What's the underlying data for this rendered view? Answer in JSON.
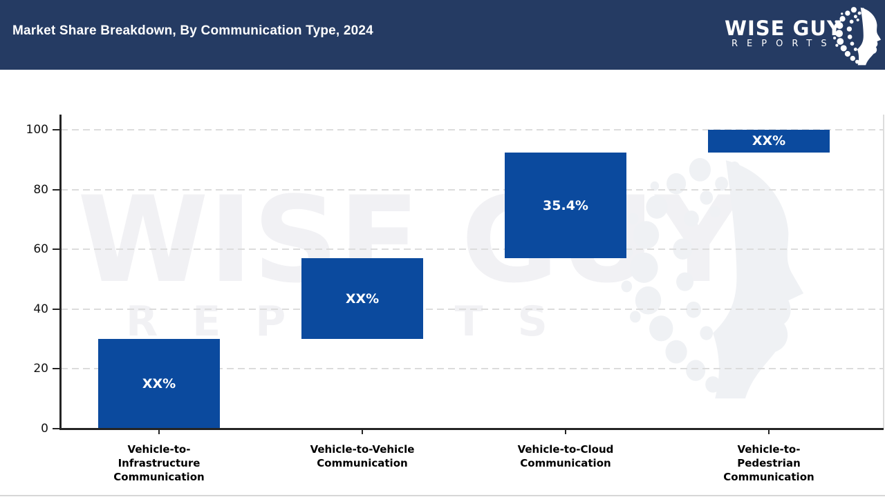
{
  "header": {
    "title": "Market Share Breakdown, By Communication Type, 2024",
    "background_color": "#253b63",
    "logo": {
      "line1": "WISE GUY",
      "line2": "REPORTS",
      "head_icon": "dotted-head-profile-icon",
      "color": "#ffffff"
    }
  },
  "watermark": {
    "line1": "WISE GUY",
    "line2": "REPORTS",
    "head_icon": "dotted-head-profile-icon",
    "color": "#f1f1f4"
  },
  "colors": {
    "bar": "#0b4a9e",
    "bar_label": "#ffffff",
    "axis": "#242424",
    "gridline": "#dcdcdc",
    "tick_text": "#111111",
    "category_text": "#000000"
  },
  "chart_data": {
    "type": "bar",
    "subtype": "waterfall",
    "title": "Market Share Breakdown, By Communication Type, 2024",
    "xlabel": "",
    "ylabel": "",
    "ylim": [
      0,
      100
    ],
    "yticks": [
      0,
      20,
      40,
      60,
      80,
      100
    ],
    "grid": "horizontal-dashed",
    "legend": "none",
    "categories": [
      "Vehicle-to-Infrastructure Communication",
      "Vehicle-to-Vehicle Communication",
      "Vehicle-to-Cloud Communication",
      "Vehicle-to-Pedestrian Communication"
    ],
    "segments": [
      {
        "category": "Vehicle-to-Infrastructure Communication",
        "lines": [
          "Vehicle-to-",
          "Infrastructure",
          "Communication"
        ],
        "start": 0,
        "end": 30,
        "value_label": "XX%",
        "value_estimate": 30
      },
      {
        "category": "Vehicle-to-Vehicle Communication",
        "lines": [
          "Vehicle-to-Vehicle",
          "Communication"
        ],
        "start": 30,
        "end": 57,
        "value_label": "XX%",
        "value_estimate": 27
      },
      {
        "category": "Vehicle-to-Cloud Communication",
        "lines": [
          "Vehicle-to-Cloud",
          "Communication"
        ],
        "start": 57,
        "end": 92.4,
        "value_label": "35.4%",
        "value_estimate": 35.4
      },
      {
        "category": "Vehicle-to-Pedestrian Communication",
        "lines": [
          "Vehicle-to-",
          "Pedestrian",
          "Communication"
        ],
        "start": 92.4,
        "end": 100,
        "value_label": "XX%",
        "value_estimate": 7.6
      }
    ]
  }
}
